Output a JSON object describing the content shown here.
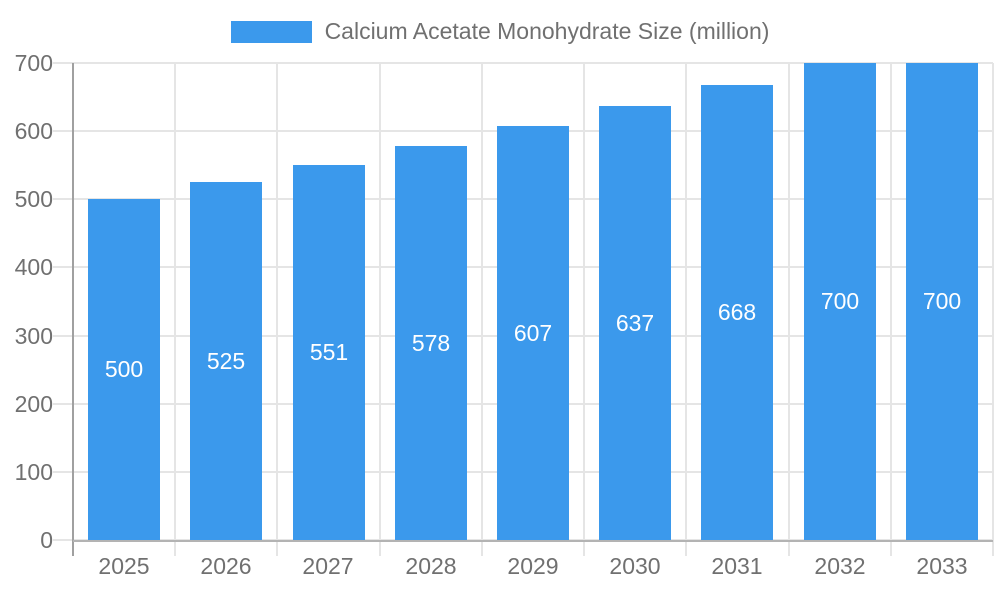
{
  "legend": {
    "label": "Calcium Acetate Monohydrate Size (million)"
  },
  "colors": {
    "bar": "#3B99EC",
    "grid": "#E5E5E5",
    "y_axis": "#A0A0A0",
    "x_axis": "#B3B3B3",
    "tick_label": "#707070",
    "bar_label": "#FFFFFF"
  },
  "chart_data": {
    "type": "bar",
    "title": "Calcium Acetate Monohydrate Size (million)",
    "categories": [
      "2025",
      "2026",
      "2027",
      "2028",
      "2029",
      "2030",
      "2031",
      "2032",
      "2033"
    ],
    "values": [
      500,
      525,
      551,
      578,
      607,
      637,
      668,
      700,
      700
    ],
    "xlabel": "",
    "ylabel": "",
    "ylim": [
      0,
      700
    ],
    "yticks": [
      0,
      100,
      200,
      300,
      400,
      500,
      600,
      700
    ],
    "grid": true,
    "legend_position": "top",
    "bar_labels": "inside-center"
  }
}
